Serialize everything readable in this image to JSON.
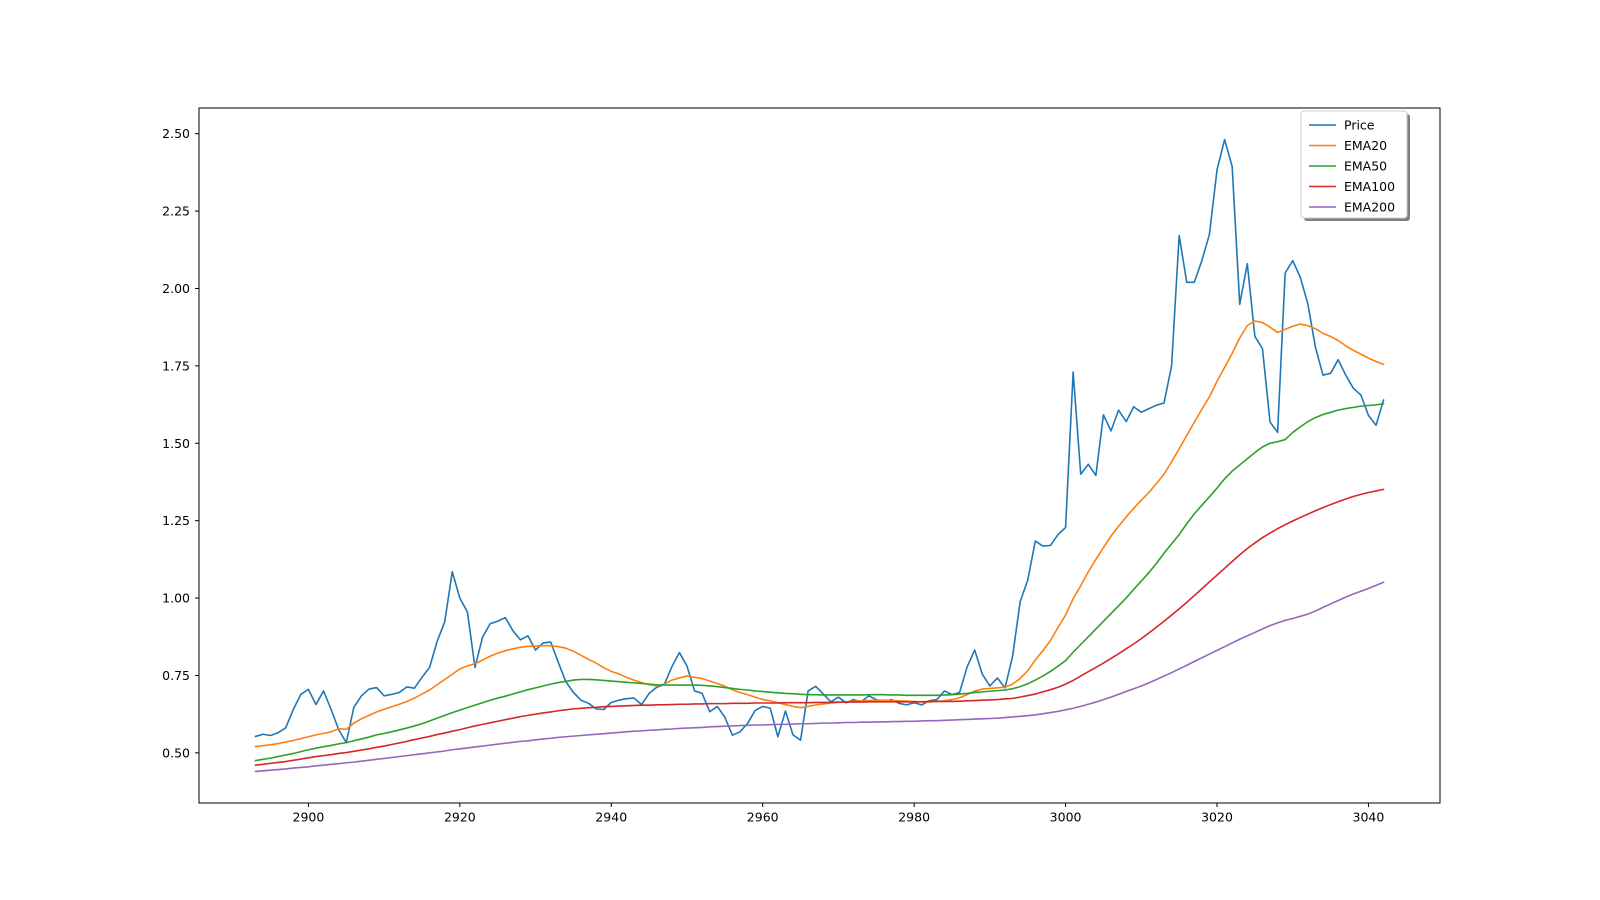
{
  "chart_data": {
    "type": "line",
    "title": "",
    "xlabel": "",
    "ylabel": "",
    "grid": false,
    "legend_position": "upper right",
    "x_start": 2893,
    "x_step": 1,
    "x_end": 3042,
    "xlim": [
      2885.55,
      3049.45
    ],
    "ylim": [
      0.338,
      2.583
    ],
    "x_ticks": [
      2900,
      2920,
      2940,
      2960,
      2980,
      3000,
      3020,
      3040
    ],
    "x_tick_labels": [
      "2900",
      "2920",
      "2940",
      "2960",
      "2980",
      "3000",
      "3020",
      "3040"
    ],
    "y_ticks": [
      0.5,
      0.75,
      1.0,
      1.25,
      1.5,
      1.75,
      2.0,
      2.25,
      2.5
    ],
    "y_tick_labels": [
      "0.50",
      "0.75",
      "1.00",
      "1.25",
      "1.50",
      "1.75",
      "2.00",
      "2.25",
      "2.50"
    ],
    "series": [
      {
        "name": "Price",
        "color": "#1f77b4",
        "values": [
          0.553,
          0.56,
          0.556,
          0.565,
          0.581,
          0.64,
          0.689,
          0.705,
          0.656,
          0.7,
          0.64,
          0.575,
          0.533,
          0.647,
          0.684,
          0.706,
          0.711,
          0.684,
          0.689,
          0.695,
          0.713,
          0.709,
          0.744,
          0.776,
          0.86,
          0.923,
          1.085,
          1.0,
          0.955,
          0.776,
          0.874,
          0.917,
          0.925,
          0.937,
          0.895,
          0.865,
          0.878,
          0.832,
          0.855,
          0.858,
          0.792,
          0.73,
          0.695,
          0.67,
          0.66,
          0.642,
          0.64,
          0.663,
          0.67,
          0.675,
          0.677,
          0.656,
          0.692,
          0.712,
          0.721,
          0.778,
          0.824,
          0.78,
          0.7,
          0.692,
          0.633,
          0.65,
          0.615,
          0.557,
          0.568,
          0.595,
          0.637,
          0.65,
          0.644,
          0.552,
          0.635,
          0.558,
          0.541,
          0.7,
          0.715,
          0.69,
          0.665,
          0.68,
          0.662,
          0.672,
          0.665,
          0.684,
          0.672,
          0.665,
          0.672,
          0.66,
          0.655,
          0.662,
          0.655,
          0.668,
          0.672,
          0.7,
          0.688,
          0.695,
          0.778,
          0.832,
          0.754,
          0.716,
          0.742,
          0.71,
          0.812,
          0.988,
          1.058,
          1.184,
          1.168,
          1.17,
          1.205,
          1.228,
          1.73,
          1.4,
          1.432,
          1.396,
          1.592,
          1.54,
          1.607,
          1.57,
          1.618,
          1.6,
          1.612,
          1.623,
          1.63,
          1.75,
          2.171,
          2.02,
          2.02,
          2.09,
          2.175,
          2.383,
          2.481,
          2.394,
          1.949,
          2.08,
          1.845,
          1.806,
          1.569,
          1.535,
          2.05,
          2.09,
          2.036,
          1.95,
          1.81,
          1.72,
          1.726,
          1.77,
          1.72,
          1.678,
          1.656,
          1.59,
          1.558,
          1.64
        ]
      },
      {
        "name": "EMA20",
        "color": "#ff7f0e",
        "values": [
          0.52,
          0.523,
          0.526,
          0.53,
          0.535,
          0.54,
          0.546,
          0.552,
          0.558,
          0.563,
          0.568,
          0.578,
          0.576,
          0.596,
          0.61,
          0.621,
          0.632,
          0.641,
          0.649,
          0.657,
          0.666,
          0.677,
          0.69,
          0.703,
          0.72,
          0.737,
          0.754,
          0.771,
          0.781,
          0.788,
          0.8,
          0.812,
          0.822,
          0.83,
          0.836,
          0.841,
          0.844,
          0.845,
          0.846,
          0.846,
          0.843,
          0.838,
          0.828,
          0.815,
          0.802,
          0.79,
          0.775,
          0.763,
          0.755,
          0.744,
          0.735,
          0.727,
          0.72,
          0.716,
          0.722,
          0.735,
          0.742,
          0.748,
          0.744,
          0.74,
          0.732,
          0.724,
          0.715,
          0.704,
          0.695,
          0.688,
          0.68,
          0.672,
          0.668,
          0.662,
          0.656,
          0.65,
          0.646,
          0.65,
          0.655,
          0.658,
          0.661,
          0.663,
          0.665,
          0.667,
          0.668,
          0.669,
          0.67,
          0.67,
          0.669,
          0.668,
          0.667,
          0.666,
          0.665,
          0.664,
          0.666,
          0.668,
          0.672,
          0.678,
          0.688,
          0.7,
          0.706,
          0.708,
          0.71,
          0.712,
          0.722,
          0.74,
          0.765,
          0.8,
          0.83,
          0.863,
          0.905,
          0.945,
          0.998,
          1.04,
          1.085,
          1.125,
          1.163,
          1.2,
          1.232,
          1.262,
          1.29,
          1.316,
          1.341,
          1.37,
          1.4,
          1.44,
          1.482,
          1.525,
          1.568,
          1.61,
          1.65,
          1.7,
          1.745,
          1.79,
          1.84,
          1.88,
          1.895,
          1.89,
          1.875,
          1.858,
          1.868,
          1.878,
          1.885,
          1.88,
          1.87,
          1.855,
          1.845,
          1.832,
          1.815,
          1.8,
          1.788,
          1.775,
          1.764,
          1.755
        ]
      },
      {
        "name": "EMA50",
        "color": "#2ca02c",
        "values": [
          0.475,
          0.479,
          0.483,
          0.488,
          0.493,
          0.498,
          0.504,
          0.51,
          0.515,
          0.52,
          0.524,
          0.529,
          0.533,
          0.539,
          0.545,
          0.551,
          0.558,
          0.563,
          0.568,
          0.574,
          0.58,
          0.587,
          0.594,
          0.603,
          0.612,
          0.621,
          0.63,
          0.638,
          0.646,
          0.654,
          0.662,
          0.67,
          0.677,
          0.683,
          0.69,
          0.697,
          0.704,
          0.71,
          0.716,
          0.722,
          0.727,
          0.731,
          0.735,
          0.737,
          0.737,
          0.736,
          0.734,
          0.732,
          0.73,
          0.728,
          0.726,
          0.724,
          0.722,
          0.72,
          0.719,
          0.719,
          0.719,
          0.719,
          0.719,
          0.718,
          0.716,
          0.714,
          0.711,
          0.708,
          0.705,
          0.703,
          0.7,
          0.698,
          0.696,
          0.694,
          0.692,
          0.691,
          0.689,
          0.688,
          0.688,
          0.687,
          0.687,
          0.687,
          0.687,
          0.687,
          0.687,
          0.688,
          0.688,
          0.688,
          0.687,
          0.687,
          0.686,
          0.686,
          0.686,
          0.686,
          0.686,
          0.687,
          0.688,
          0.69,
          0.692,
          0.695,
          0.697,
          0.699,
          0.701,
          0.703,
          0.707,
          0.714,
          0.723,
          0.735,
          0.748,
          0.763,
          0.78,
          0.798,
          0.825,
          0.85,
          0.875,
          0.9,
          0.925,
          0.95,
          0.975,
          1.0,
          1.028,
          1.055,
          1.082,
          1.112,
          1.145,
          1.175,
          1.205,
          1.24,
          1.272,
          1.3,
          1.327,
          1.355,
          1.385,
          1.41,
          1.43,
          1.45,
          1.47,
          1.488,
          1.5,
          1.505,
          1.512,
          1.535,
          1.553,
          1.57,
          1.583,
          1.593,
          1.6,
          1.607,
          1.612,
          1.616,
          1.62,
          1.622,
          1.624,
          1.628
        ]
      },
      {
        "name": "EMA100",
        "color": "#d62728",
        "values": [
          0.46,
          0.463,
          0.466,
          0.469,
          0.472,
          0.476,
          0.48,
          0.484,
          0.488,
          0.491,
          0.494,
          0.498,
          0.501,
          0.505,
          0.509,
          0.513,
          0.518,
          0.522,
          0.527,
          0.532,
          0.537,
          0.543,
          0.548,
          0.553,
          0.559,
          0.564,
          0.57,
          0.575,
          0.581,
          0.587,
          0.592,
          0.597,
          0.602,
          0.607,
          0.612,
          0.617,
          0.621,
          0.625,
          0.629,
          0.632,
          0.636,
          0.639,
          0.642,
          0.644,
          0.646,
          0.647,
          0.649,
          0.65,
          0.651,
          0.652,
          0.653,
          0.654,
          0.654,
          0.655,
          0.655,
          0.656,
          0.657,
          0.657,
          0.658,
          0.658,
          0.659,
          0.659,
          0.659,
          0.66,
          0.66,
          0.66,
          0.661,
          0.661,
          0.661,
          0.661,
          0.662,
          0.662,
          0.662,
          0.662,
          0.663,
          0.663,
          0.663,
          0.664,
          0.664,
          0.664,
          0.664,
          0.665,
          0.665,
          0.665,
          0.665,
          0.665,
          0.665,
          0.665,
          0.665,
          0.666,
          0.666,
          0.666,
          0.666,
          0.667,
          0.668,
          0.669,
          0.67,
          0.671,
          0.672,
          0.674,
          0.676,
          0.68,
          0.685,
          0.69,
          0.697,
          0.704,
          0.712,
          0.722,
          0.734,
          0.748,
          0.762,
          0.776,
          0.79,
          0.805,
          0.82,
          0.836,
          0.852,
          0.869,
          0.887,
          0.906,
          0.925,
          0.945,
          0.965,
          0.986,
          1.008,
          1.03,
          1.052,
          1.074,
          1.096,
          1.118,
          1.14,
          1.16,
          1.178,
          1.195,
          1.21,
          1.224,
          1.237,
          1.249,
          1.26,
          1.271,
          1.282,
          1.292,
          1.302,
          1.311,
          1.32,
          1.328,
          1.335,
          1.341,
          1.346,
          1.351
        ]
      },
      {
        "name": "EMA200",
        "color": "#9467bd",
        "values": [
          0.44,
          0.442,
          0.444,
          0.446,
          0.448,
          0.451,
          0.453,
          0.455,
          0.458,
          0.46,
          0.463,
          0.465,
          0.468,
          0.47,
          0.473,
          0.476,
          0.479,
          0.482,
          0.485,
          0.488,
          0.491,
          0.494,
          0.497,
          0.5,
          0.503,
          0.506,
          0.51,
          0.513,
          0.516,
          0.519,
          0.522,
          0.525,
          0.528,
          0.531,
          0.534,
          0.537,
          0.539,
          0.542,
          0.545,
          0.547,
          0.55,
          0.552,
          0.554,
          0.556,
          0.558,
          0.56,
          0.562,
          0.564,
          0.566,
          0.568,
          0.57,
          0.571,
          0.573,
          0.574,
          0.576,
          0.577,
          0.579,
          0.58,
          0.581,
          0.582,
          0.584,
          0.585,
          0.586,
          0.587,
          0.588,
          0.589,
          0.59,
          0.59,
          0.591,
          0.592,
          0.592,
          0.593,
          0.594,
          0.594,
          0.595,
          0.596,
          0.596,
          0.597,
          0.598,
          0.598,
          0.599,
          0.599,
          0.6,
          0.6,
          0.601,
          0.601,
          0.602,
          0.602,
          0.603,
          0.604,
          0.604,
          0.605,
          0.606,
          0.607,
          0.608,
          0.609,
          0.61,
          0.611,
          0.612,
          0.614,
          0.616,
          0.618,
          0.62,
          0.623,
          0.626,
          0.63,
          0.634,
          0.639,
          0.644,
          0.65,
          0.657,
          0.664,
          0.672,
          0.68,
          0.689,
          0.698,
          0.707,
          0.716,
          0.726,
          0.737,
          0.748,
          0.759,
          0.771,
          0.783,
          0.795,
          0.807,
          0.819,
          0.831,
          0.843,
          0.855,
          0.867,
          0.878,
          0.889,
          0.9,
          0.911,
          0.92,
          0.928,
          0.934,
          0.941,
          0.948,
          0.958,
          0.97,
          0.981,
          0.992,
          1.003,
          1.013,
          1.022,
          1.031,
          1.041,
          1.051
        ]
      }
    ]
  }
}
